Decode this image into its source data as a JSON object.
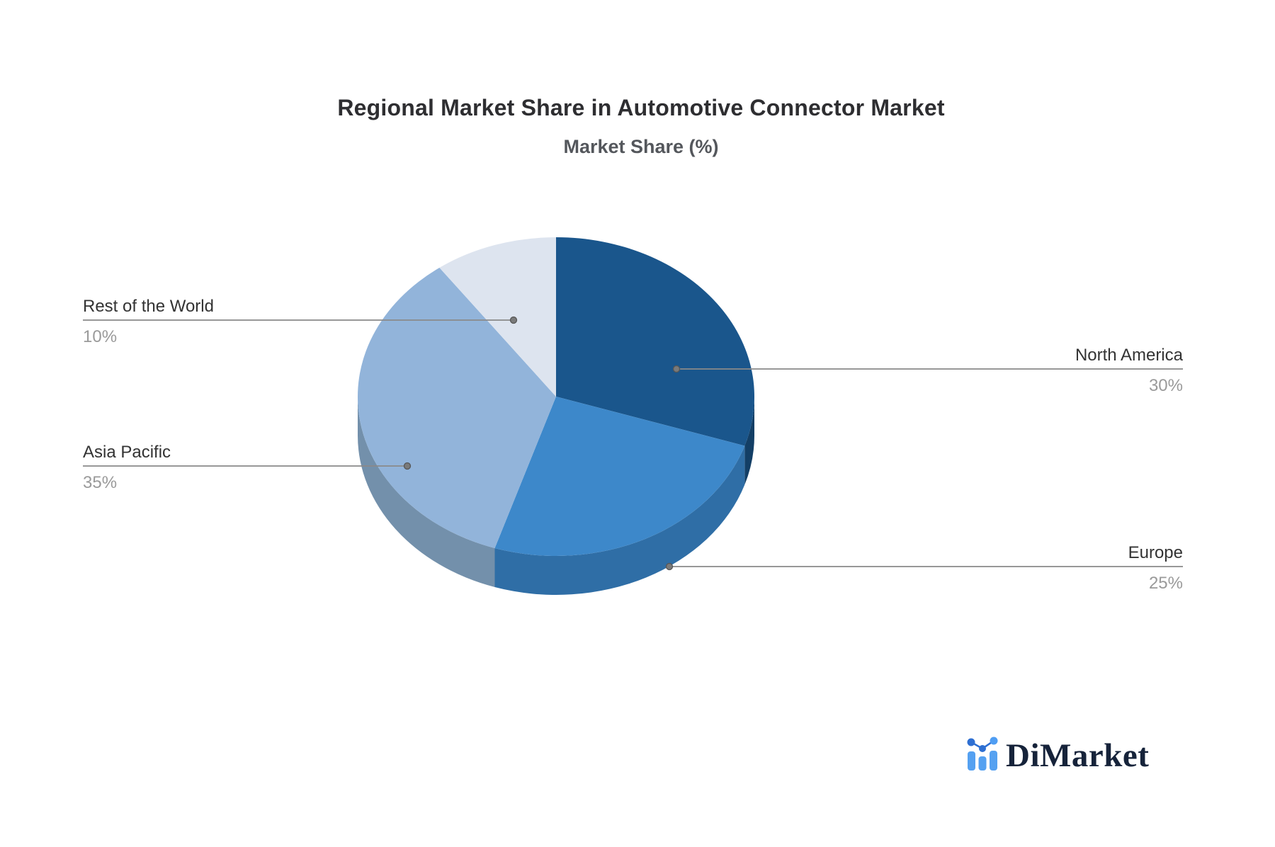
{
  "chart_data": {
    "type": "pie",
    "title": "Regional Market Share in Automotive Connector Market",
    "subtitle": "Market Share (%)",
    "unit": "%",
    "start_angle_deg": 0,
    "direction": "clockwise",
    "effect": "3d",
    "legend": "none",
    "slices": [
      {
        "name": "North America",
        "value": 30,
        "percent_label": "30%",
        "color": "#1a568c",
        "side_color": "#133f66"
      },
      {
        "name": "Europe",
        "value": 25,
        "percent_label": "25%",
        "color": "#3d88ca",
        "side_color": "#2f6ea6"
      },
      {
        "name": "Asia Pacific",
        "value": 35,
        "percent_label": "35%",
        "color": "#92b4da",
        "side_color": "#7390ab"
      },
      {
        "name": "Rest of the World",
        "value": 10,
        "percent_label": "10%",
        "color": "#dde4ef",
        "side_color": "#b9c3d6"
      }
    ],
    "style": {
      "title_color": "#2e2e31",
      "subtitle_color": "#54575c",
      "label_color": "#333333",
      "percent_color": "#9a9a9a",
      "connector_color": "#8a8a8a",
      "background": "#ffffff"
    }
  },
  "branding": {
    "logo_text": "DiMarket",
    "logo_bar_color": "#55a1f1",
    "logo_dot_color": "#2e6fd2"
  }
}
